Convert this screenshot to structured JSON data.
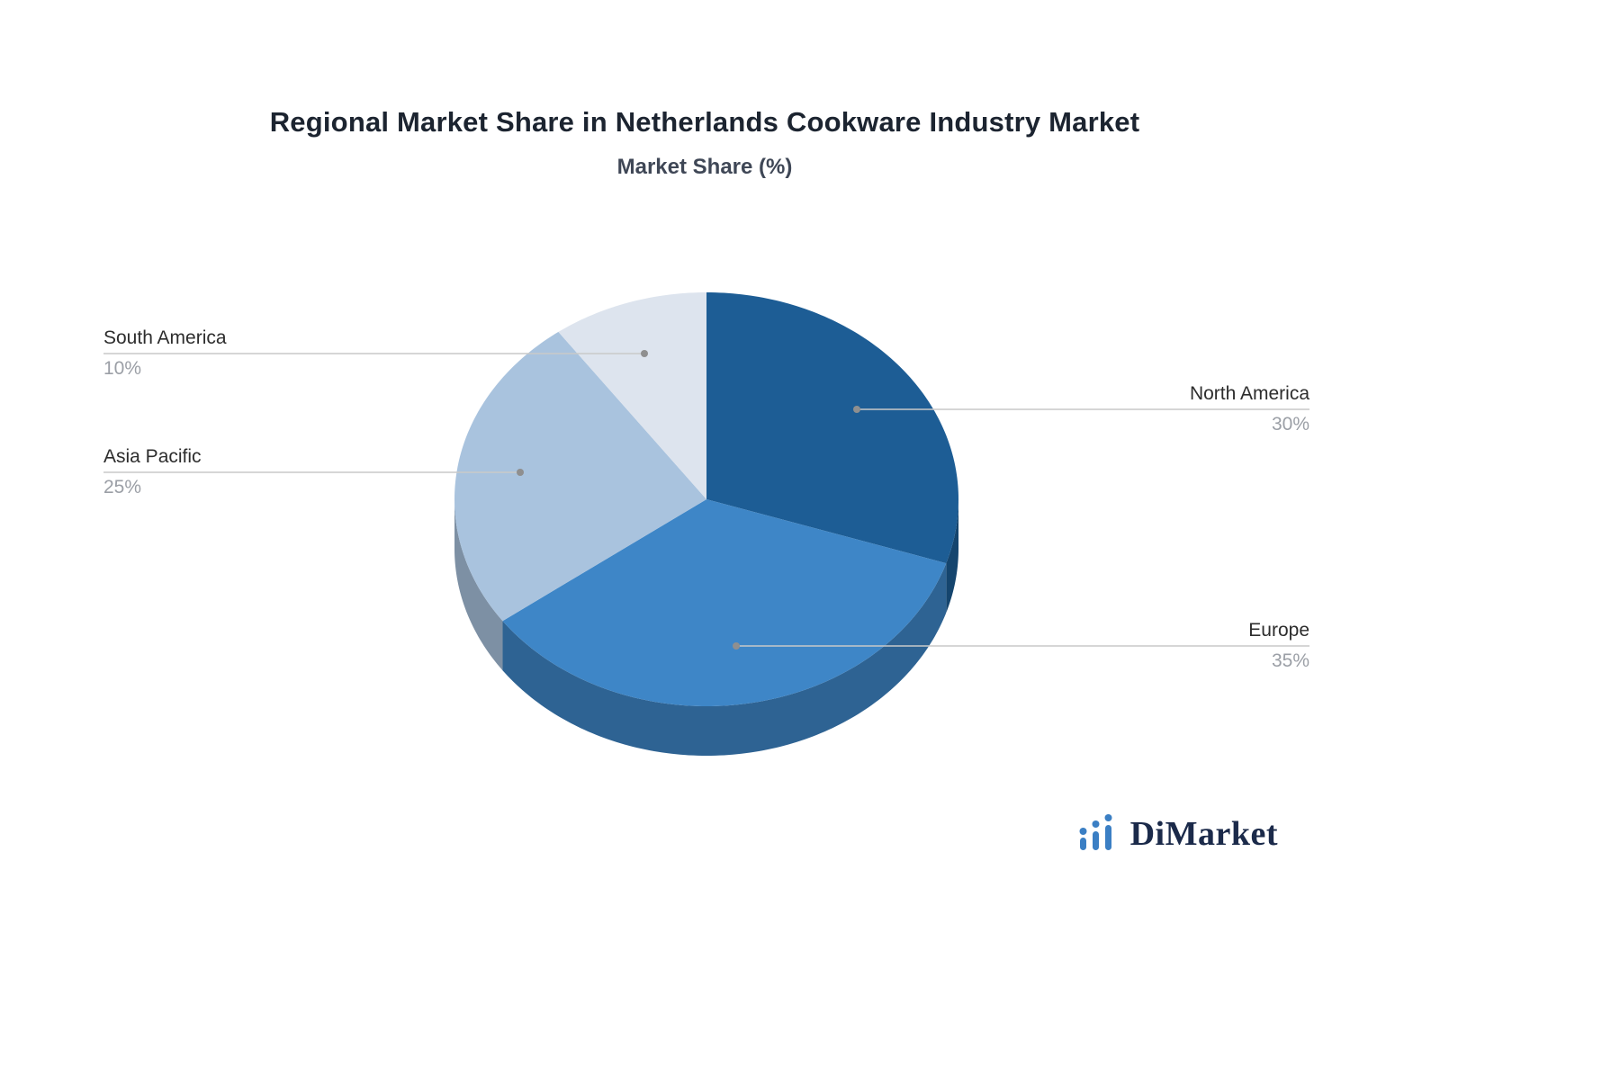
{
  "chart": {
    "title": "Regional Market Share in Netherlands Cookware Industry Market",
    "subtitle": "Market Share (%)"
  },
  "chart_data": {
    "type": "pie",
    "title": "Regional Market Share in Netherlands Cookware Industry Market",
    "subtitle": "Market Share (%)",
    "unit": "%",
    "style": "3d-pie",
    "legend_position": "none",
    "labels_style": "callout-leader-lines",
    "start_angle_deg": -90,
    "direction": "clockwise",
    "slices": [
      {
        "label": "North America",
        "value": 30,
        "display": "30%",
        "color": "#1d5d95"
      },
      {
        "label": "Europe",
        "value": 35,
        "display": "35%",
        "color": "#3e86c7"
      },
      {
        "label": "Asia Pacific",
        "value": 25,
        "display": "25%",
        "color": "#a9c3de"
      },
      {
        "label": "South America",
        "value": 10,
        "display": "10%",
        "color": "#dde4ee"
      }
    ]
  },
  "branding": {
    "logo_text": "DiMarket",
    "logo_icon": "bar-chart-icon",
    "logo_text_color": "#1b2a4a",
    "icon_color": "#3b7fc4"
  }
}
